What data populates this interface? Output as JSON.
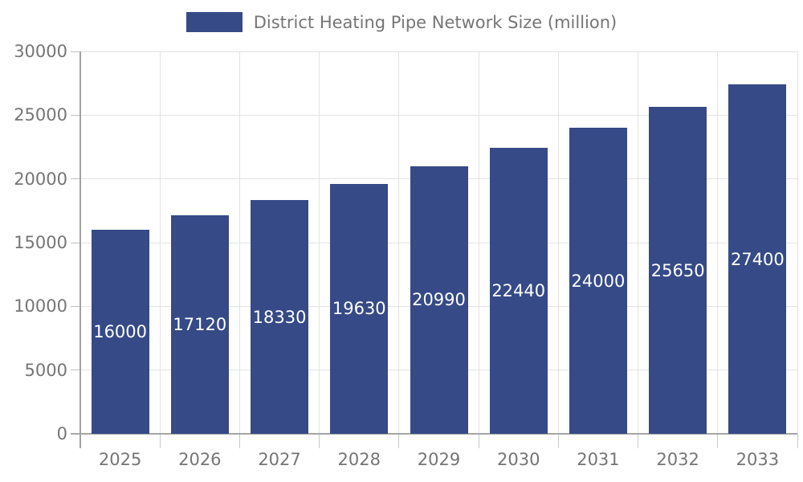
{
  "legend": {
    "label": "District Heating Pipe Network Size (million)"
  },
  "chart_data": {
    "type": "bar",
    "title": "",
    "xlabel": "",
    "ylabel": "",
    "categories": [
      "2025",
      "2026",
      "2027",
      "2028",
      "2029",
      "2030",
      "2031",
      "2032",
      "2033"
    ],
    "values": [
      16000,
      17120,
      18330,
      19630,
      20990,
      22440,
      24000,
      25650,
      27400
    ],
    "series_name": "District Heating Pipe Network Size (million)",
    "ylim": [
      0,
      30000
    ],
    "ytick_interval": 5000,
    "ytick_labels": [
      "0",
      "5000",
      "10000",
      "15000",
      "20000",
      "25000",
      "30000"
    ],
    "grid": true,
    "legend_position": "top",
    "bar_color": "#364a87",
    "bar_label_color": "#ffffff",
    "axis_text_color": "#757575"
  }
}
